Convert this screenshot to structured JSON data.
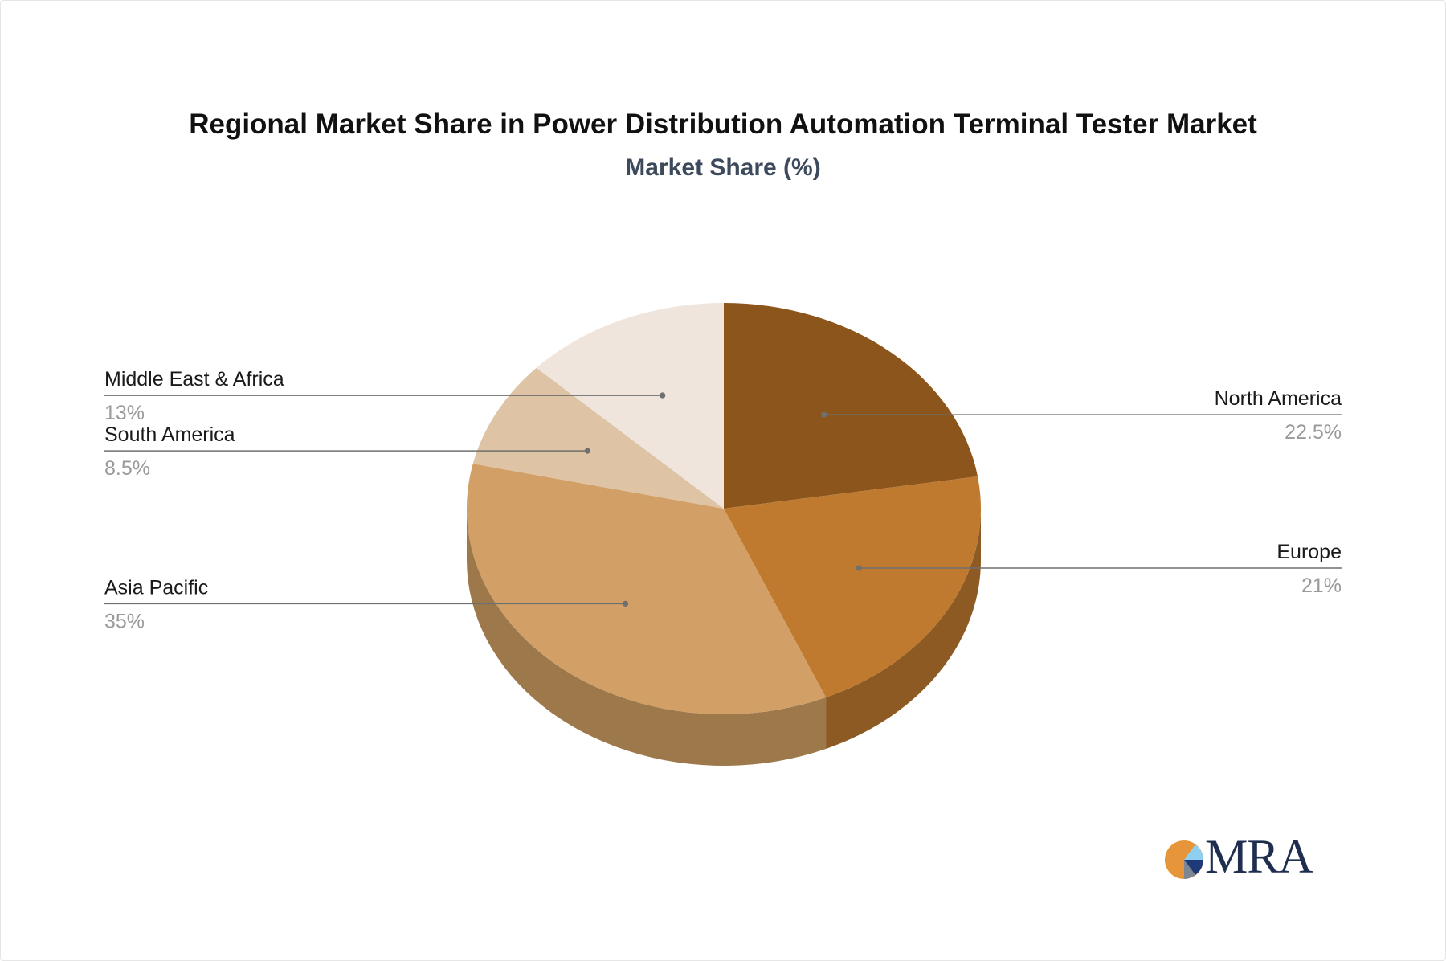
{
  "chart_data": {
    "type": "pie",
    "title": "Regional Market Share in Power Distribution Automation Terminal Tester Market",
    "subtitle": "Market Share (%)",
    "slices": [
      {
        "name": "North America",
        "value": 22.5,
        "label": "22.5%",
        "color": "#8c551b",
        "side_color": "#8a5a24",
        "label_side": "right"
      },
      {
        "name": "Europe",
        "value": 21,
        "label": "21%",
        "color": "#bf7a30",
        "side_color": "#8c5a22",
        "label_side": "right"
      },
      {
        "name": "Asia Pacific",
        "value": 35,
        "label": "35%",
        "color": "#d2a066",
        "side_color": "#9c784b",
        "label_side": "left"
      },
      {
        "name": "South America",
        "value": 8.5,
        "label": "8.5%",
        "color": "#dec4a5",
        "side_color": "#a08a70",
        "label_side": "left"
      },
      {
        "name": "Middle East & Africa",
        "value": 13,
        "label": "13%",
        "color": "#efe5dc",
        "side_color": "#b0a69c",
        "label_side": "left"
      }
    ],
    "start_angle": "12 o'clock",
    "direction": "clockwise",
    "legend": "none",
    "style": "3d"
  },
  "logo": {
    "text": "MRA"
  }
}
